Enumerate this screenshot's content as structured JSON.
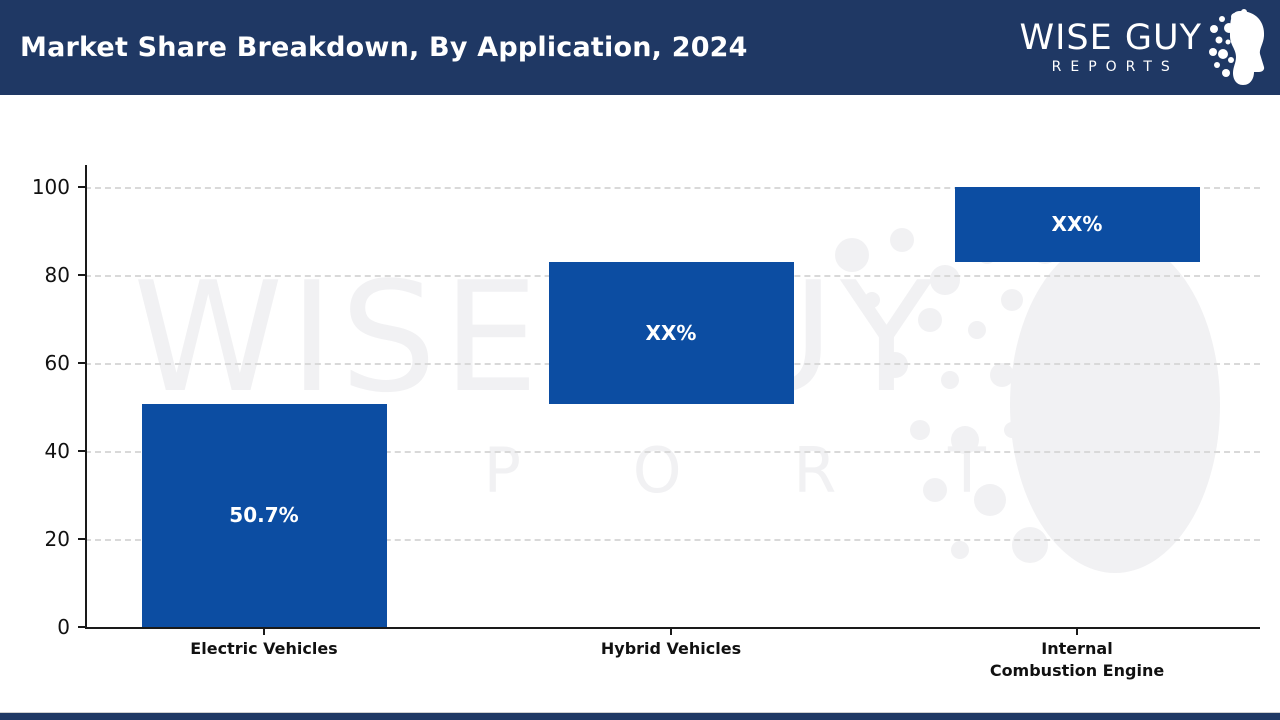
{
  "header": {
    "title": "Market Share Breakdown, By Application, 2024",
    "background_color": "#1F3864",
    "logo": {
      "primary": "WISE GUY",
      "secondary": "REPORTS"
    }
  },
  "watermark": {
    "primary": "WISE GUY",
    "secondary": "REPORTS"
  },
  "chart_data": {
    "type": "bar",
    "subtype": "floating-stacked-percentage",
    "title": "Market Share Breakdown, By Application, 2024",
    "categories": [
      "Electric Vehicles",
      "Hybrid Vehicles",
      "Internal Combustion Engine"
    ],
    "category_display_lines": [
      [
        "Electric Vehicles"
      ],
      [
        "Hybrid Vehicles"
      ],
      [
        "Internal",
        "Combustion Engine"
      ]
    ],
    "segments": [
      {
        "category": "Electric Vehicles",
        "start": 0,
        "end": 50.7,
        "label": "50.7%"
      },
      {
        "category": "Hybrid Vehicles",
        "start": 50.7,
        "end": 83,
        "label": "XX%"
      },
      {
        "category": "Internal Combustion Engine",
        "start": 83,
        "end": 100,
        "label": "XX%"
      }
    ],
    "bar_color": "#0C4DA2",
    "bar_label_color": "#FFFFFF",
    "yticks": [
      0,
      20,
      40,
      60,
      80,
      100
    ],
    "ylim": [
      0,
      105
    ],
    "xlabel": "",
    "ylabel": "",
    "grid": "horizontal-dashed",
    "legend": "none"
  }
}
